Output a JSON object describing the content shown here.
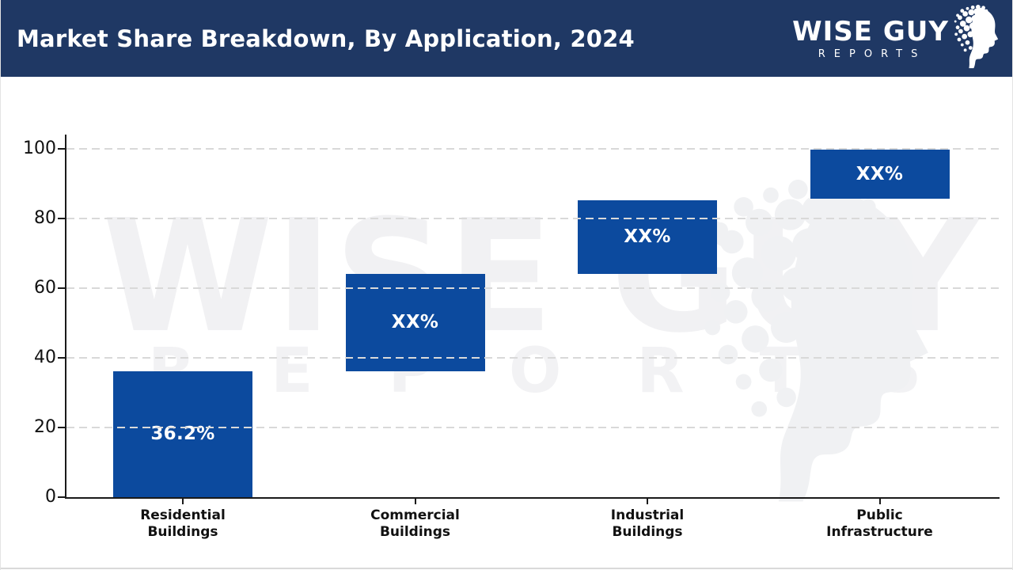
{
  "header": {
    "title": "Market Share Breakdown, By Application, 2024",
    "background_color": "#1f3864",
    "brand": {
      "line1": "WISE GUY",
      "line2": "REPORTS"
    }
  },
  "watermark": {
    "line1": "WISE GUY",
    "line2": "R E P O R T S"
  },
  "colors": {
    "header_navy": "#1f3864",
    "bar_blue": "#0c4a9e",
    "bar_label_white": "#ffffff",
    "gridline_gray": "#d9d9d9",
    "axis_black": "#1a1a1a",
    "text_black": "#111111",
    "watermark_gray": "#f1f1f3"
  },
  "chart_data": {
    "type": "bar",
    "variant": "waterfall (floating segment bars)",
    "title": "Market Share Breakdown, By Application, 2024",
    "xlabel": "",
    "ylabel": "",
    "ylim": [
      0,
      104
    ],
    "yticks": [
      0,
      20,
      40,
      60,
      80,
      100
    ],
    "grid": "horizontal dashed, drawn above bars",
    "legend": "none",
    "categories": [
      {
        "lines": [
          "Residential",
          "Buildings"
        ]
      },
      {
        "lines": [
          "Commercial",
          "Buildings"
        ]
      },
      {
        "lines": [
          "Industrial",
          "Buildings"
        ]
      },
      {
        "lines": [
          "Public",
          "Infrastructure"
        ]
      }
    ],
    "segments": [
      {
        "category": "Residential Buildings",
        "start": 0,
        "end": 36.2,
        "label": "36.2%"
      },
      {
        "category": "Commercial Buildings",
        "start": 36.2,
        "end": 64.1,
        "label": "XX%"
      },
      {
        "category": "Industrial Buildings",
        "start": 64.2,
        "end": 85.3,
        "label": "XX%"
      },
      {
        "category": "Public Infrastructure",
        "start": 85.6,
        "end": 99.8,
        "label": "XX%"
      }
    ]
  }
}
